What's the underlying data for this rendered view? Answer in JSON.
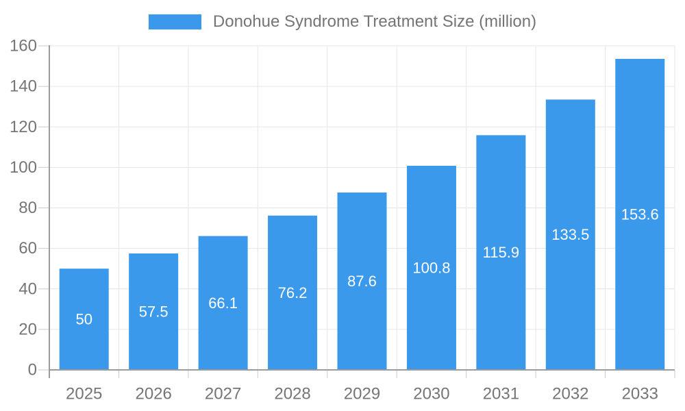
{
  "chart_data": {
    "type": "bar",
    "title": "Donohue Syndrome Treatment Size (million)",
    "legend": {
      "label": "Donohue Syndrome Treatment Size (million)",
      "position": "top"
    },
    "categories": [
      "2025",
      "2026",
      "2027",
      "2028",
      "2029",
      "2030",
      "2031",
      "2032",
      "2033"
    ],
    "values": [
      50,
      57.5,
      66.1,
      76.2,
      87.6,
      100.8,
      115.9,
      133.5,
      153.6
    ],
    "bar_labels": [
      "50",
      "57.5",
      "66.1",
      "76.2",
      "87.6",
      "100.8",
      "115.9",
      "133.5",
      "153.6"
    ],
    "xlabel": "",
    "ylabel": "",
    "ylim": [
      0,
      160
    ],
    "ytick_step": 20,
    "ytick_labels": [
      "0",
      "20",
      "40",
      "60",
      "80",
      "100",
      "120",
      "140",
      "160"
    ],
    "grid": true,
    "colors": {
      "bar": "#3B99EC",
      "bar_label_text": "#FFFFFF",
      "axis_line": "#9B9B9B",
      "grid_line": "#E6E6E6",
      "tick_mark": "#CBCBCB",
      "axis_text": "#757575",
      "legend_text": "#757575",
      "background": "#FFFFFF"
    }
  }
}
